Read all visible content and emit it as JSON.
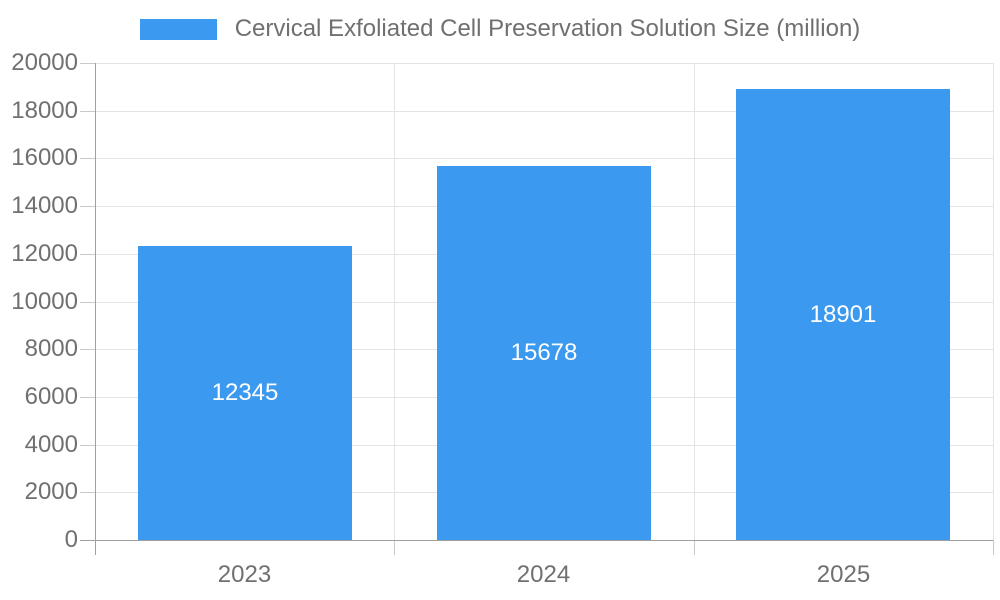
{
  "legend": {
    "label": "Cervical Exfoliated Cell Preservation Solution Size (million)"
  },
  "chart_data": {
    "type": "bar",
    "title": "",
    "xlabel": "",
    "ylabel": "",
    "categories": [
      "2023",
      "2024",
      "2025"
    ],
    "series": [
      {
        "name": "Cervical Exfoliated Cell Preservation Solution Size (million)",
        "values": [
          12345,
          15678,
          18901
        ],
        "color": "#3B99F0"
      }
    ],
    "value_labels": {
      "position": "inside-center",
      "color": "#ffffff",
      "texts": [
        "12345",
        "15678",
        "18901"
      ]
    },
    "ylim": [
      0,
      20000
    ],
    "ytick_step": 2000,
    "yticks": [
      0,
      2000,
      4000,
      6000,
      8000,
      10000,
      12000,
      14000,
      16000,
      18000,
      20000
    ],
    "grid": {
      "horizontal": true,
      "vertical": true
    },
    "legend_position": "top-center",
    "colors": {
      "bar": "#3B99F0",
      "grid_line": "#E4E4E4",
      "axis_line": "#A0A0A0",
      "tick_line": "#C9C9C9",
      "axis_text": "#707070",
      "value_text": "#FFFFFF",
      "background": "#FFFFFF"
    }
  }
}
